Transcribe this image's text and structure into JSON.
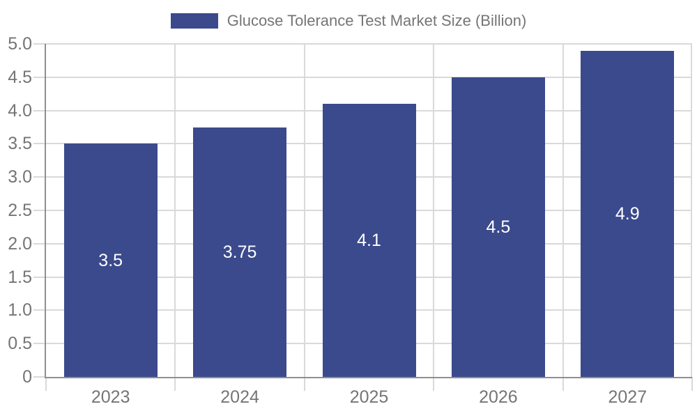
{
  "chart_data": {
    "type": "bar",
    "title": "Glucose Tolerance Test Market Size (Billion)",
    "categories": [
      "2023",
      "2024",
      "2025",
      "2026",
      "2027"
    ],
    "values": [
      3.5,
      3.75,
      4.1,
      4.5,
      4.9
    ],
    "bar_labels": [
      "3.5",
      "3.75",
      "4.1",
      "4.5",
      "4.9"
    ],
    "xlabel": "",
    "ylabel": "",
    "ylim": [
      0,
      5
    ],
    "ytick_step": 0.5,
    "ytick_labels": [
      "0",
      "0.5",
      "1.0",
      "1.5",
      "2.0",
      "2.5",
      "3.0",
      "3.5",
      "4.0",
      "4.5",
      "5.0"
    ],
    "grid": true,
    "legend_position": "top-center",
    "bar_label_position": "center",
    "colors": {
      "bar": "#3a4a8c",
      "grid": "#d9d9d9",
      "spine": "#8f8f8f",
      "tick_label": "#757575",
      "bar_label": "#ffffff",
      "background": "#ffffff"
    }
  }
}
